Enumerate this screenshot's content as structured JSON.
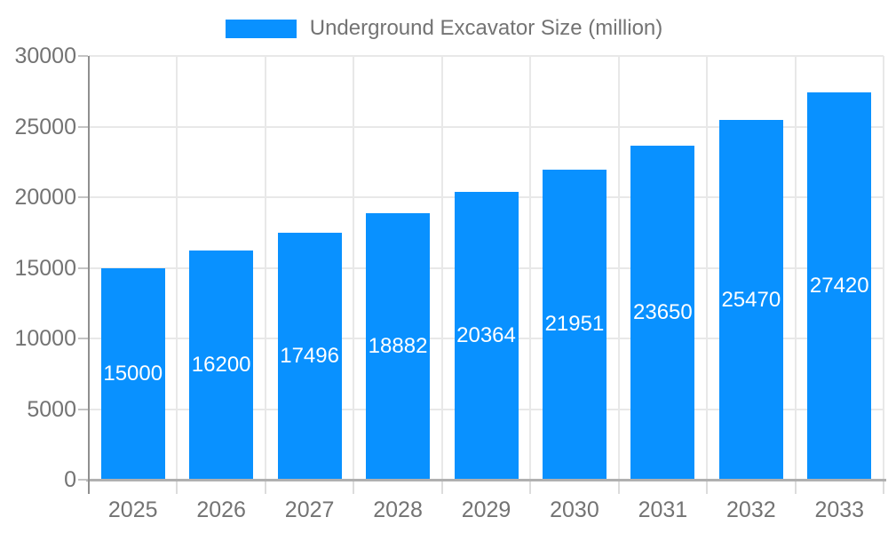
{
  "chart_data": {
    "type": "bar",
    "title": "Underground Excavator Size (million)",
    "categories": [
      "2025",
      "2026",
      "2027",
      "2028",
      "2029",
      "2030",
      "2031",
      "2032",
      "2033"
    ],
    "series": [
      {
        "name": "Underground Excavator Size (million)",
        "values": [
          15000,
          16200,
          17496,
          18882,
          20364,
          21951,
          23650,
          25470,
          27420
        ]
      }
    ],
    "bar_value_labels": [
      "15000",
      "16200",
      "17496",
      "18882",
      "20364",
      "21951",
      "23650",
      "25470",
      "27420"
    ],
    "xlabel": "",
    "ylabel": "",
    "ylim": [
      0,
      30000
    ],
    "yticks": [
      0,
      5000,
      10000,
      15000,
      20000,
      25000,
      30000
    ],
    "ytick_labels": [
      "0",
      "5000",
      "10000",
      "15000",
      "20000",
      "25000",
      "30000"
    ],
    "grid": true,
    "legend_position": "top-center",
    "colors": {
      "bar": "#0991FF",
      "bar_label_text": "#FFFFFF",
      "axis_text": "#737373",
      "legend_text": "#737373",
      "gridline": "#E8E8E8",
      "y_axis_line": "#8F8F8F",
      "x_axis_line": "#B0B0B0",
      "x_tick": "#DCDCDC",
      "y_tick": "#C4C4C4",
      "background": "#FFFFFF"
    }
  }
}
